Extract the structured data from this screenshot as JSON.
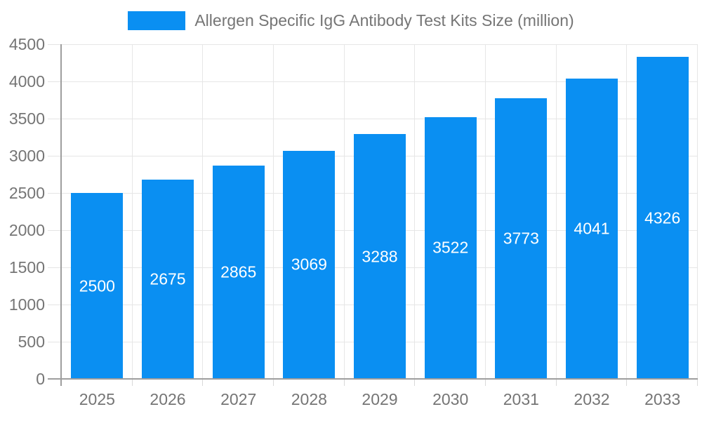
{
  "chart_data": {
    "type": "bar",
    "title": "Allergen Specific IgG Antibody Test Kits Size (million)",
    "legend": {
      "label": "Allergen Specific IgG Antibody Test Kits Size (million)",
      "position": "top"
    },
    "categories": [
      "2025",
      "2026",
      "2027",
      "2028",
      "2029",
      "2030",
      "2031",
      "2032",
      "2033"
    ],
    "values": [
      2500,
      2675,
      2865,
      3069,
      3288,
      3522,
      3773,
      4041,
      4326
    ],
    "xlabel": "",
    "ylabel": "",
    "ylim": [
      0,
      4500
    ],
    "ytick_step": 500,
    "yticks": [
      0,
      500,
      1000,
      1500,
      2000,
      2500,
      3000,
      3500,
      4000,
      4500
    ],
    "grid": true,
    "bar_color": "#0a8ff2",
    "value_label_color": "#ffffff",
    "axis_text_color": "#757575",
    "grid_color": "#e6e6e6",
    "axis_line_color": "#9e9e9e",
    "background_color": "#ffffff"
  }
}
